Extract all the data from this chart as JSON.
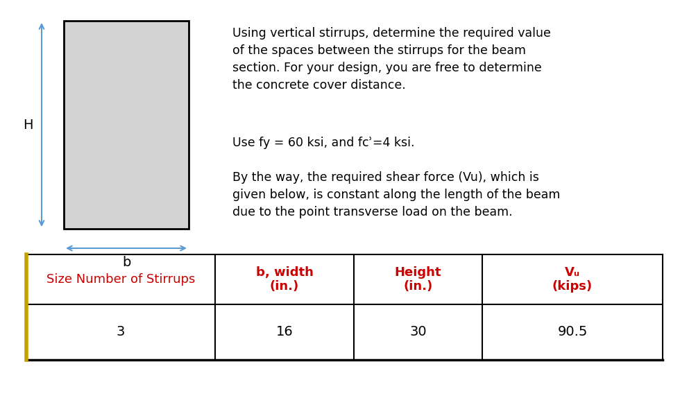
{
  "background_color": "#ffffff",
  "rect_fill": "#d3d3d3",
  "rect_edge": "#000000",
  "h_label": "H",
  "b_label": "b",
  "arrow_color": "#5b9bd5",
  "para1": "Using vertical stirrups, determine the required value\nof the spaces between the stirrups for the beam\nsection. For your design, you are free to determine\nthe concrete cover distance.",
  "para2": "Use fy = 60 ksi, and fcʾ=4 ksi.",
  "para3": "By the way, the required shear force (Vu), which is\ngiven below, is constant along the length of the beam\ndue to the point transverse load on the beam.",
  "table_headers": [
    "Size Number of Stirrups",
    "b, width\n(in.)",
    "Height\n(in.)",
    "Vᵤ\n(kips)"
  ],
  "table_row": [
    "3",
    "16",
    "30",
    "90.5"
  ],
  "header_color": "#cc0000",
  "data_color": "#000000",
  "table_left_border": "#c8a000",
  "font_size_text": 12.5,
  "font_size_table_header": 13.0,
  "font_size_table_data": 14.0,
  "font_size_label": 14.0
}
